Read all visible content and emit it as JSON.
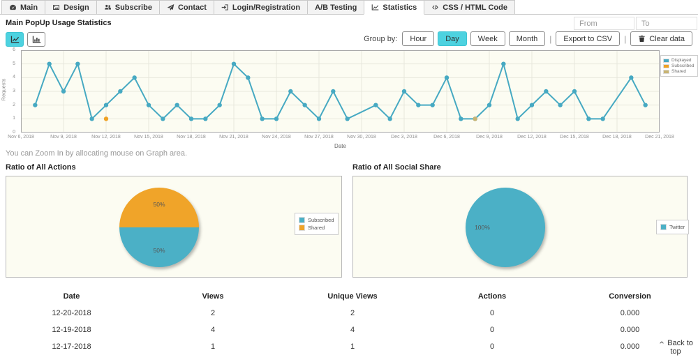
{
  "tabs": [
    {
      "label": "Main",
      "icon": "dashboard-icon",
      "active": false
    },
    {
      "label": "Design",
      "icon": "image-icon",
      "active": false
    },
    {
      "label": "Subscribe",
      "icon": "users-icon",
      "active": false
    },
    {
      "label": "Contact",
      "icon": "paper-plane-icon",
      "active": false
    },
    {
      "label": "Login/Registration",
      "icon": "sign-in-icon",
      "active": false
    },
    {
      "label": "A/B Testing",
      "icon": null,
      "active": false
    },
    {
      "label": "Statistics",
      "icon": "line-chart-icon",
      "active": true
    },
    {
      "label": "CSS / HTML Code",
      "icon": "code-icon",
      "active": false
    }
  ],
  "header": {
    "title": "Main PopUp Usage Statistics",
    "from_placeholder": "From",
    "to_placeholder": "To"
  },
  "toolbar": {
    "group_by_label": "Group by:",
    "buttons": [
      "Hour",
      "Day",
      "Week",
      "Month"
    ],
    "active_button": "Day",
    "export_label": "Export to CSV",
    "clear_label": "Clear data"
  },
  "colors": {
    "accent_cyan": "#4dd2e0",
    "line_teal": "#46a9c2",
    "orange": "#efa124",
    "tan": "#c8b473",
    "pie_teal": "#4bb0c6",
    "plot_bg": "#fcfcf2",
    "plot_border": "#a8a8a8",
    "grid": "#e7e7dc"
  },
  "zoom_hint": "You can Zoom In by allocating mouse on Graph area.",
  "chart_data": [
    {
      "type": "line",
      "title": "Main PopUp Usage Statistics",
      "xlabel": "Date",
      "ylabel": "Requests",
      "ylim": [
        0,
        6
      ],
      "yticks": [
        0,
        1,
        2,
        3,
        4,
        5,
        6
      ],
      "x_unit": "days since Nov 6, 2018 (days with no data are skipped)",
      "x_tick_days": [
        0,
        3,
        6,
        9,
        12,
        15,
        18,
        21,
        24,
        27,
        30,
        33,
        36,
        39,
        42,
        45
      ],
      "x_tick_labels": [
        "Nov 6, 2018",
        "Nov 9, 2018",
        "Nov 12, 2018",
        "Nov 15, 2018",
        "Nov 18, 2018",
        "Nov 21, 2018",
        "Nov 24, 2018",
        "Nov 27, 2018",
        "Nov 30, 2018",
        "Dec 3, 2018",
        "Dec 6, 2018",
        "Dec 9, 2018",
        "Dec 12, 2018",
        "Dec 15, 2018",
        "Dec 18, 2018",
        "Dec 21, 2018"
      ],
      "legend_position": "top-right",
      "grid": true,
      "series": [
        {
          "name": "Displayed",
          "color": "#46a9c2",
          "line": true,
          "points": [
            [
              1,
              2
            ],
            [
              2,
              5
            ],
            [
              3,
              3
            ],
            [
              4,
              5
            ],
            [
              5,
              1
            ],
            [
              6,
              2
            ],
            [
              7,
              3
            ],
            [
              8,
              4
            ],
            [
              9,
              2
            ],
            [
              10,
              1
            ],
            [
              11,
              2
            ],
            [
              12,
              1
            ],
            [
              13,
              1
            ],
            [
              14,
              2
            ],
            [
              15,
              5
            ],
            [
              16,
              4
            ],
            [
              17,
              1
            ],
            [
              18,
              1
            ],
            [
              19,
              3
            ],
            [
              20,
              2
            ],
            [
              21,
              1
            ],
            [
              22,
              3
            ],
            [
              23,
              1
            ],
            [
              25,
              2
            ],
            [
              26,
              1
            ],
            [
              27,
              3
            ],
            [
              28,
              2
            ],
            [
              29,
              2
            ],
            [
              30,
              4
            ],
            [
              31,
              1
            ],
            [
              32,
              1
            ],
            [
              33,
              2
            ],
            [
              34,
              5
            ],
            [
              35,
              1
            ],
            [
              36,
              2
            ],
            [
              37,
              3
            ],
            [
              38,
              2
            ],
            [
              39,
              3
            ],
            [
              40,
              1
            ],
            [
              41,
              1
            ],
            [
              43,
              4
            ],
            [
              44,
              2
            ]
          ]
        },
        {
          "name": "Subscribed",
          "color": "#efa124",
          "line": false,
          "points": [
            [
              6,
              1
            ]
          ]
        },
        {
          "name": "Shared",
          "color": "#c8b473",
          "line": false,
          "points": [
            [
              32,
              1
            ]
          ]
        }
      ]
    },
    {
      "type": "pie",
      "title": "Ratio of All Actions",
      "slices": [
        {
          "label": "Subscribed",
          "pct": 50,
          "display": "50%",
          "color": "#4bb0c6"
        },
        {
          "label": "Shared",
          "pct": 50,
          "display": "50%",
          "color": "#f0a429"
        }
      ],
      "legend_position": "right"
    },
    {
      "type": "pie",
      "title": "Ratio of All Social Share",
      "slices": [
        {
          "label": "Twitter",
          "pct": 100,
          "display": "100%",
          "color": "#4bb0c6"
        }
      ],
      "legend_position": "right"
    }
  ],
  "table": {
    "headers": [
      "Date",
      "Views",
      "Unique Views",
      "Actions",
      "Conversion"
    ],
    "rows": [
      [
        "12-20-2018",
        "2",
        "2",
        "0",
        "0.000"
      ],
      [
        "12-19-2018",
        "4",
        "4",
        "0",
        "0.000"
      ],
      [
        "12-17-2018",
        "1",
        "1",
        "0",
        "0.000"
      ]
    ]
  },
  "back_to_top": "Back to top"
}
